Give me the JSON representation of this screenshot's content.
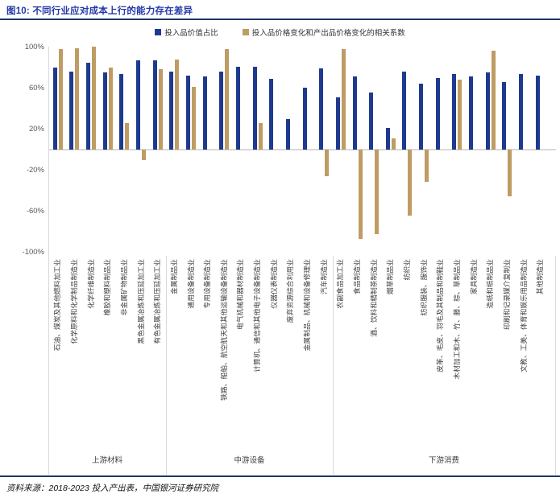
{
  "title": "图10: 不同行业应对成本上行的能力存在差异",
  "source": "资料来源：2018-2023 投入产出表，中国银河证券研究院",
  "colors": {
    "value_share": "#1e3a8f",
    "correlation": "#bf9c63",
    "title_text": "#2438a8",
    "rule": "#1f3864",
    "axis_gray": "#d9d9d9"
  },
  "legend": [
    {
      "label": "投入品价值占比",
      "color": "#1e3a8f"
    },
    {
      "label": "投入品价格变化和产出品价格变化的相关系数",
      "color": "#bf9c63"
    }
  ],
  "chart_data": {
    "type": "bar",
    "title": "图10: 不同行业应对成本上行的能力存在差异",
    "xlabel": "",
    "ylabel": "",
    "ylim": [
      -100,
      100
    ],
    "grid": false,
    "legend_position": "top",
    "y_ticks": [
      "100%",
      "60%",
      "20%",
      "-20%",
      "-60%",
      "-100%"
    ],
    "unit": "%",
    "groups": [
      {
        "name": "上游材料",
        "categories": [
          "石油、煤炭及其他燃料加工业",
          "化学原料和化学制品制造业",
          "化学纤维制造业",
          "橡胶和塑料制品业",
          "非金属矿物制品业",
          "黑色金属冶炼和压延加工业",
          "有色金属冶炼和压延加工业"
        ]
      },
      {
        "name": "中游设备",
        "categories": [
          "金属制品业",
          "通用设备制造业",
          "专用设备制造业",
          "铁路、船舶、航空航天和其他运输设备制造业",
          "电气机械和器材制造业",
          "计算机、通信和其他电子设备制造业",
          "仪器仪表制造业",
          "废弃资源综合利用业",
          "金属制品、机械和设备修理业",
          "汽车制造业"
        ]
      },
      {
        "name": "下游消费",
        "categories": [
          "农副食品加工业",
          "食品制造业",
          "酒、饮料和精制茶制造业",
          "烟草制品业",
          "纺织业",
          "纺织服装、服饰业",
          "皮革、毛皮、羽毛及其制品和制鞋业",
          "木材加工和木、竹、藤、棕、草制品业",
          "家具制造业",
          "造纸和纸制品业",
          "印刷和记录媒介复制业",
          "文教、工美、体育和娱乐用品制造业",
          "其他制造业"
        ]
      }
    ],
    "series": [
      {
        "name": "投入品价值占比",
        "color": "#1e3a8f",
        "values": [
          80,
          76,
          85,
          75,
          74,
          87,
          87,
          76,
          72,
          71,
          76,
          81,
          81,
          69,
          30,
          60,
          79,
          51,
          71,
          56,
          21,
          76,
          64,
          70,
          74,
          71,
          75,
          66,
          74,
          72
        ]
      },
      {
        "name": "投入品价格变化和产出品价格变化的相关系数",
        "color": "#bf9c63",
        "values": [
          98,
          99,
          100,
          80,
          26,
          -10,
          78,
          88,
          61,
          0,
          98,
          0,
          26,
          0,
          0,
          0,
          -26,
          98,
          -87,
          -82,
          11,
          -64,
          -31,
          0,
          68,
          0,
          96,
          -45,
          0,
          0
        ]
      }
    ]
  }
}
